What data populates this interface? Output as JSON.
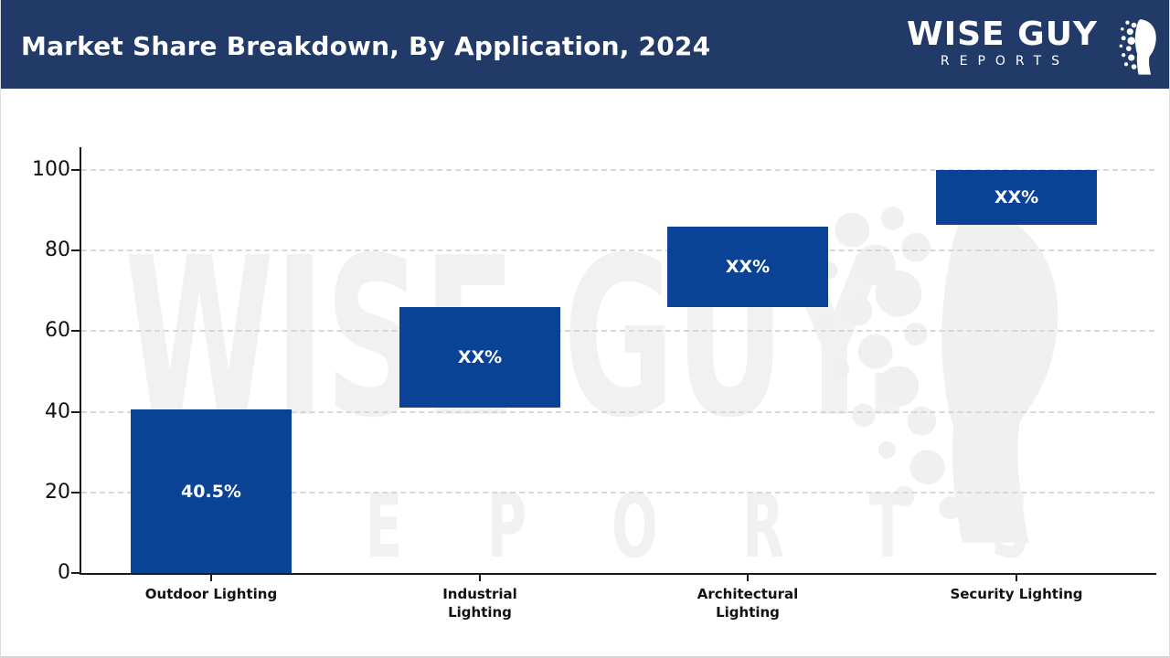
{
  "header": {
    "title": "Market Share Breakdown, By Application, 2024",
    "bg_color": "#223A67",
    "logo": {
      "line1": "WISE GUY",
      "line2": "REPORTS"
    }
  },
  "watermark": {
    "line1": "WISE GUY.",
    "line2": "R E P O R T S"
  },
  "chart_data": {
    "type": "bar",
    "variant": "waterfall",
    "title": "Market Share Breakdown, By Application, 2024",
    "categories": [
      "Outdoor Lighting",
      "Industrial Lighting",
      "Architectural Lighting",
      "Security Lighting"
    ],
    "category_label_lines": [
      [
        "Outdoor Lighting"
      ],
      [
        "Industrial",
        "Lighting"
      ],
      [
        "Architectural",
        "Lighting"
      ],
      [
        "Security Lighting"
      ]
    ],
    "segments": [
      {
        "category": "Outdoor Lighting",
        "start": 0,
        "end": 40.5,
        "label": "40.5%"
      },
      {
        "category": "Industrial Lighting",
        "start": 41,
        "end": 66,
        "label": "XX%"
      },
      {
        "category": "Architectural Lighting",
        "start": 66,
        "end": 86,
        "label": "XX%"
      },
      {
        "category": "Security Lighting",
        "start": 86.5,
        "end": 100,
        "label": "XX%"
      }
    ],
    "xlabel": "",
    "ylabel": "",
    "ylim": [
      0,
      105
    ],
    "yticks": [
      0,
      20,
      40,
      60,
      80,
      100
    ],
    "grid": "horizontal-dashed",
    "legend": "none",
    "bar_color": "#0A4296",
    "bar_label_color": "#FFFFFF",
    "axis_color": "#1a1a1a",
    "grid_color": "#d8d8d8"
  }
}
